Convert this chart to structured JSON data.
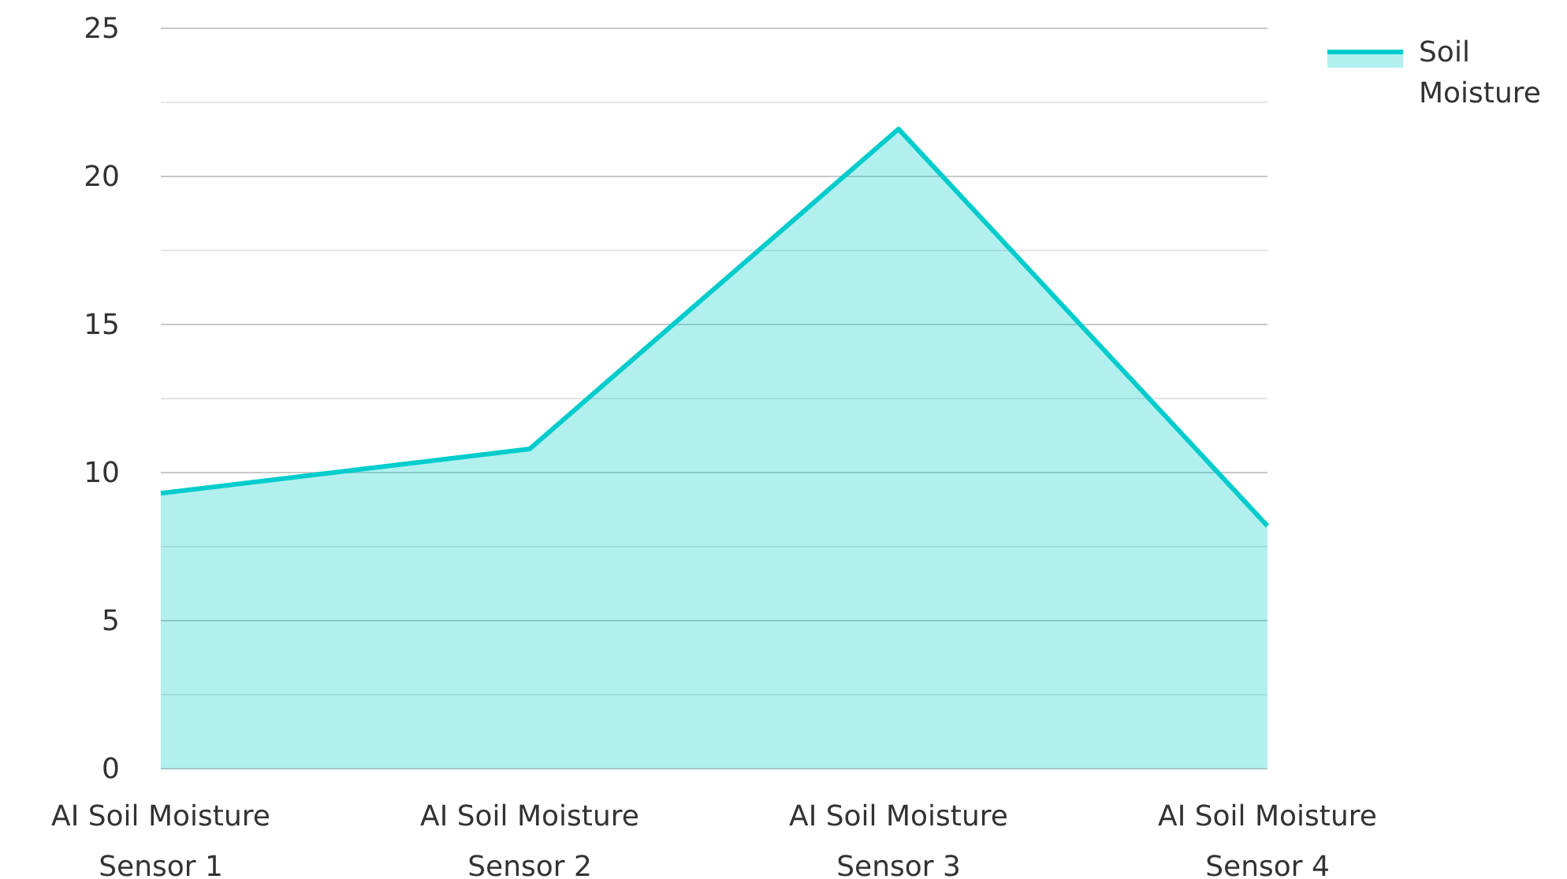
{
  "chart_data": {
    "type": "area",
    "categories": [
      "AI Soil Moisture Sensor 1",
      "AI Soil Moisture Sensor 2",
      "AI Soil Moisture Sensor 3",
      "AI Soil Moisture Sensor 4"
    ],
    "series": [
      {
        "name": "Soil Moisture",
        "color": "#00cccc",
        "values": [
          9.3,
          10.8,
          21.6,
          8.2
        ]
      }
    ],
    "ylim": [
      0,
      25
    ],
    "yticks": [
      0,
      {
        "value": 2.5,
        "label": null
      },
      5,
      {
        "value": 7.5,
        "label": null
      },
      10,
      {
        "value": 12.5,
        "label": null
      },
      15,
      {
        "value": 17.5,
        "label": null
      },
      20,
      {
        "value": 22.5,
        "label": null
      },
      25
    ],
    "grid": true,
    "legend": "top right"
  }
}
